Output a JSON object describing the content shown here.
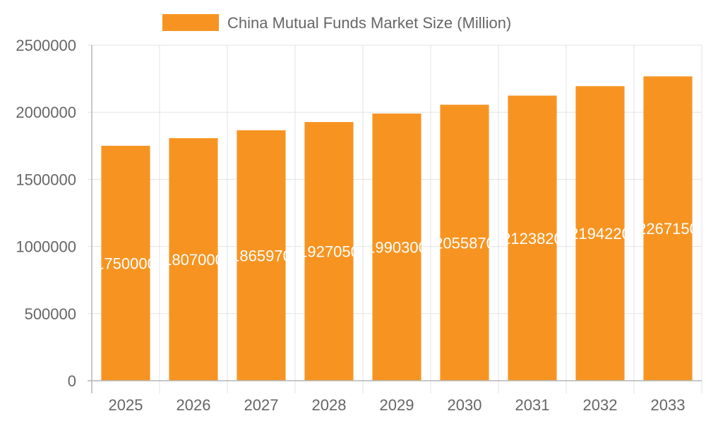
{
  "chart_data": {
    "type": "bar",
    "categories": [
      "2025",
      "2026",
      "2027",
      "2028",
      "2029",
      "2030",
      "2031",
      "2032",
      "2033"
    ],
    "series": [
      {
        "name": "China Mutual Funds Market Size (Million)",
        "values": [
          1750000,
          1807000,
          1865970,
          1927050,
          1990300,
          2055870,
          2123820,
          2194220,
          2267150
        ],
        "color": "#f79421"
      }
    ],
    "data_labels": [
      "1750000",
      "1807000",
      "1865970",
      "1927050",
      "1990300",
      "2055870",
      "2123820",
      "2194220",
      "2267150"
    ],
    "y_ticks": [
      "0",
      "500000",
      "1000000",
      "1500000",
      "2000000",
      "2500000"
    ],
    "ylim": [
      0,
      2500000
    ],
    "grid": true,
    "legend_position": "top-center",
    "title": "",
    "xlabel": "",
    "ylabel": ""
  },
  "colors": {
    "bar": "#f79421",
    "grid": "#e3e3e3",
    "tick_text": "#666666",
    "label_text": "#ffffff"
  }
}
